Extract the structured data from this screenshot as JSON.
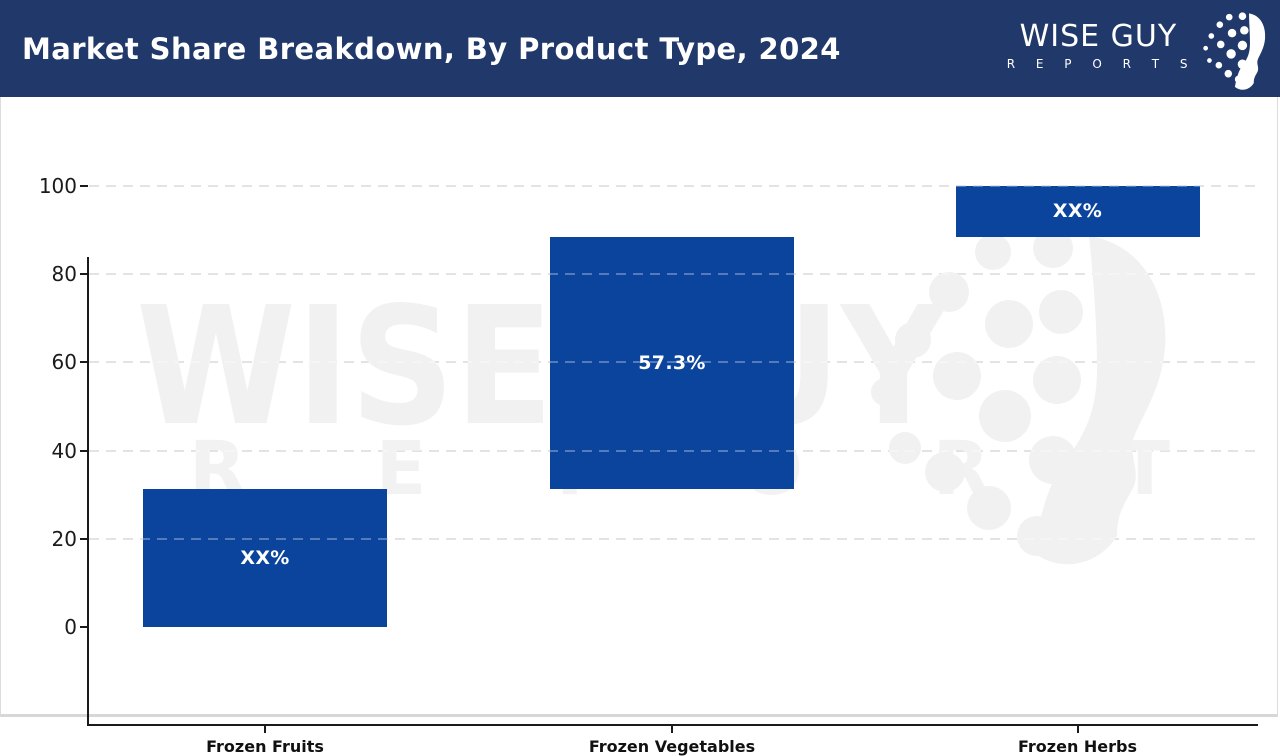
{
  "header": {
    "title": "Market Share Breakdown, By Product Type, 2024",
    "logo": {
      "line1": "WISE GUY",
      "line2": "R E P O R T S",
      "icon": "dotted-face-profile-icon"
    }
  },
  "watermark": {
    "line1": "WISE GUY",
    "line2": "R E P O R T S",
    "icon": "dotted-face-profile-watermark"
  },
  "chart_data": {
    "type": "bar",
    "subtype": "floating-segment-waterfall",
    "title": "Market Share Breakdown, By Product Type, 2024",
    "categories": [
      "Frozen Fruits",
      "Frozen Vegetables",
      "Frozen Herbs"
    ],
    "bars": [
      {
        "category": "Frozen Fruits",
        "start": 0,
        "end": 31.2,
        "label": "XX%"
      },
      {
        "category": "Frozen Vegetables",
        "start": 31.2,
        "end": 88.5,
        "label": "57.3%"
      },
      {
        "category": "Frozen Herbs",
        "start": 88.5,
        "end": 100,
        "label": "XX%"
      }
    ],
    "yticks": [
      0,
      20,
      40,
      60,
      80,
      100
    ],
    "ylim": [
      0,
      106
    ],
    "xlabel": "",
    "ylabel": "",
    "grid": "horizontal-dashed",
    "legend": "none",
    "bar_color": "#0b449c"
  },
  "colors": {
    "header_bg": "#20386a",
    "bar": "#0b449c",
    "axis": "#1a1a1a",
    "grid": "#d7d7d7",
    "bar_label_text": "#ffffff",
    "watermark": "#f1f1f1"
  }
}
